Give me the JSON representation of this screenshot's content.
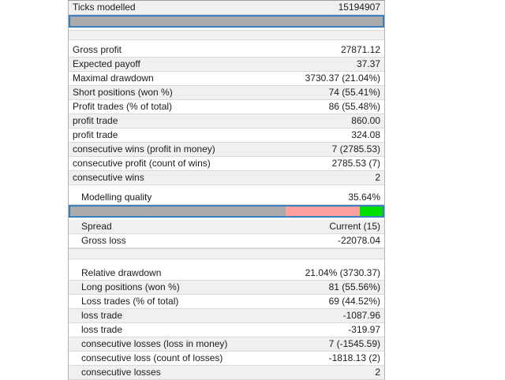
{
  "table": {
    "title": "strategy-tester-report",
    "rows": [
      {
        "type": "text",
        "label": "Ticks modelled",
        "value": "15194907",
        "shaded": true,
        "indent": 0
      },
      {
        "type": "bar_full"
      },
      {
        "type": "spacer_shaded",
        "size": "sm"
      },
      {
        "type": "gap",
        "size": "sm"
      },
      {
        "type": "text",
        "label": "Gross profit",
        "value": "27871.12",
        "shaded": false,
        "indent": 0
      },
      {
        "type": "text",
        "label": "Expected payoff",
        "value": "37.37",
        "shaded": true,
        "indent": 0
      },
      {
        "type": "text",
        "label": "Maximal drawdown",
        "value": "3730.37 (21.04%)",
        "shaded": false,
        "indent": 0
      },
      {
        "type": "text",
        "label": "Short positions (won %)",
        "value": "74 (55.41%)",
        "shaded": true,
        "indent": 0
      },
      {
        "type": "text",
        "label": "Profit trades (% of total)",
        "value": "86 (55.48%)",
        "shaded": false,
        "indent": 0
      },
      {
        "type": "text",
        "label": "profit trade",
        "value": "860.00",
        "shaded": true,
        "indent": 0
      },
      {
        "type": "text",
        "label": "profit trade",
        "value": "324.08",
        "shaded": false,
        "indent": 0
      },
      {
        "type": "text",
        "label": "consecutive wins (profit in money)",
        "value": "7 (2785.53)",
        "shaded": true,
        "indent": 0
      },
      {
        "type": "text",
        "label": "consecutive profit (count of wins)",
        "value": "2785.53 (7)",
        "shaded": false,
        "indent": 0
      },
      {
        "type": "text",
        "label": "consecutive wins",
        "value": "2",
        "shaded": true,
        "indent": 0
      },
      {
        "type": "gap",
        "size": "md"
      },
      {
        "type": "text",
        "label": "Modelling quality",
        "value": "35.64%",
        "shaded": false,
        "indent": 1
      },
      {
        "type": "bar_quality"
      },
      {
        "type": "text",
        "label": "Spread",
        "value": "Current (15)",
        "shaded": true,
        "indent": 1
      },
      {
        "type": "text",
        "label": "Gross loss",
        "value": "-22078.04",
        "shaded": false,
        "indent": 1
      },
      {
        "type": "spacer_shaded",
        "size": "md"
      },
      {
        "type": "gap",
        "size": "lg"
      },
      {
        "type": "text",
        "label": "Relative drawdown",
        "value": "21.04% (3730.37)",
        "shaded": false,
        "indent": 1
      },
      {
        "type": "text",
        "label": "Long positions (won %)",
        "value": "81 (55.56%)",
        "shaded": true,
        "indent": 1
      },
      {
        "type": "text",
        "label": "Loss trades (% of total)",
        "value": "69 (44.52%)",
        "shaded": false,
        "indent": 1
      },
      {
        "type": "text",
        "label": "loss trade",
        "value": "-1087.96",
        "shaded": true,
        "indent": 1
      },
      {
        "type": "text",
        "label": "loss trade",
        "value": "-319.97",
        "shaded": false,
        "indent": 1
      },
      {
        "type": "text",
        "label": "consecutive losses (loss in money)",
        "value": "7 (-1545.59)",
        "shaded": true,
        "indent": 1
      },
      {
        "type": "text",
        "label": "consecutive loss (count of losses)",
        "value": "-1818.13 (2)",
        "shaded": false,
        "indent": 1
      },
      {
        "type": "text",
        "label": "consecutive losses",
        "value": "2",
        "shaded": true,
        "indent": 1
      }
    ],
    "bars": {
      "ticks_progress": {
        "fill_pct": 100,
        "fill_color": "#ababab",
        "border_color": "#3a80c1"
      },
      "modelling_quality": {
        "border_color": "#3a80c1",
        "segments": [
          {
            "name": "modelled",
            "color": "#ababab",
            "pct": 69
          },
          {
            "name": "low-quality",
            "color": "#ff9f9f",
            "pct": 23.7
          },
          {
            "name": "good-quality",
            "color": "#00e000",
            "pct": 7.3
          }
        ]
      }
    }
  }
}
